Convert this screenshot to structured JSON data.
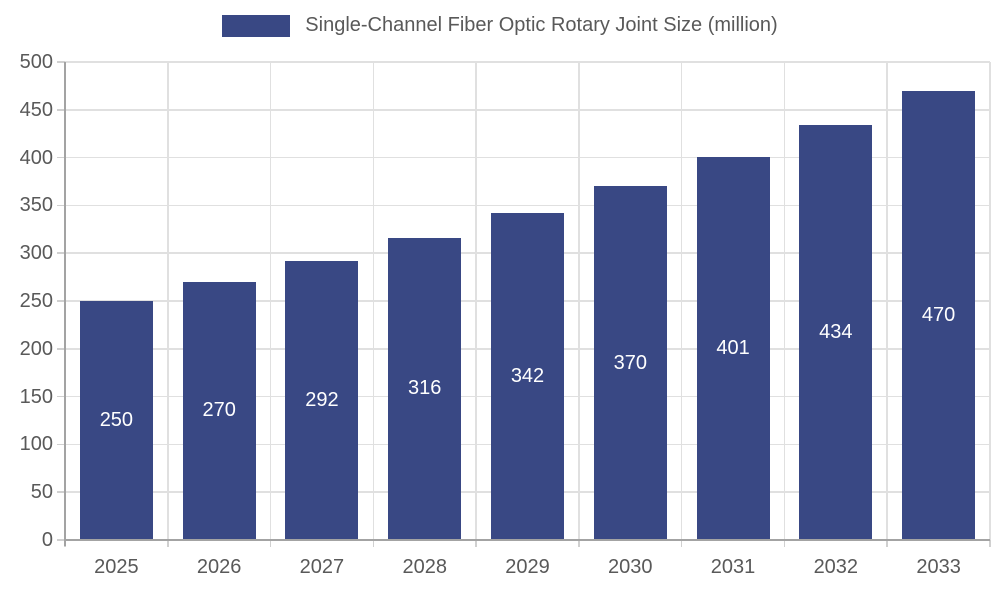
{
  "legend": {
    "label": "Single-Channel Fiber Optic Rotary Joint Size (million)"
  },
  "chart_data": {
    "type": "bar",
    "title": "Single-Channel Fiber Optic Rotary Joint Size (million)",
    "categories": [
      "2025",
      "2026",
      "2027",
      "2028",
      "2029",
      "2030",
      "2031",
      "2032",
      "2033"
    ],
    "series": [
      {
        "name": "Single-Channel Fiber Optic Rotary Joint Size (million)",
        "values": [
          250,
          270,
          292,
          316,
          342,
          370,
          401,
          434,
          470
        ]
      }
    ],
    "value_labels": [
      "250",
      "270",
      "292",
      "316",
      "342",
      "370",
      "401",
      "434",
      "470"
    ],
    "xlabel": "",
    "ylabel": "",
    "ylim": [
      0,
      500
    ],
    "ytick_step": 50,
    "ytick_labels": [
      "0",
      "50",
      "100",
      "150",
      "200",
      "250",
      "300",
      "350",
      "400",
      "450",
      "500"
    ],
    "grid": true,
    "legend_position": "top-center",
    "colors": {
      "bar": "#394884",
      "value_label": "#ffffff",
      "axis_text": "#595959",
      "gridline": "#e0e0e0",
      "tick": "#d0d0d0",
      "axis_line": "#a3a3a3",
      "background": "#ffffff"
    }
  }
}
